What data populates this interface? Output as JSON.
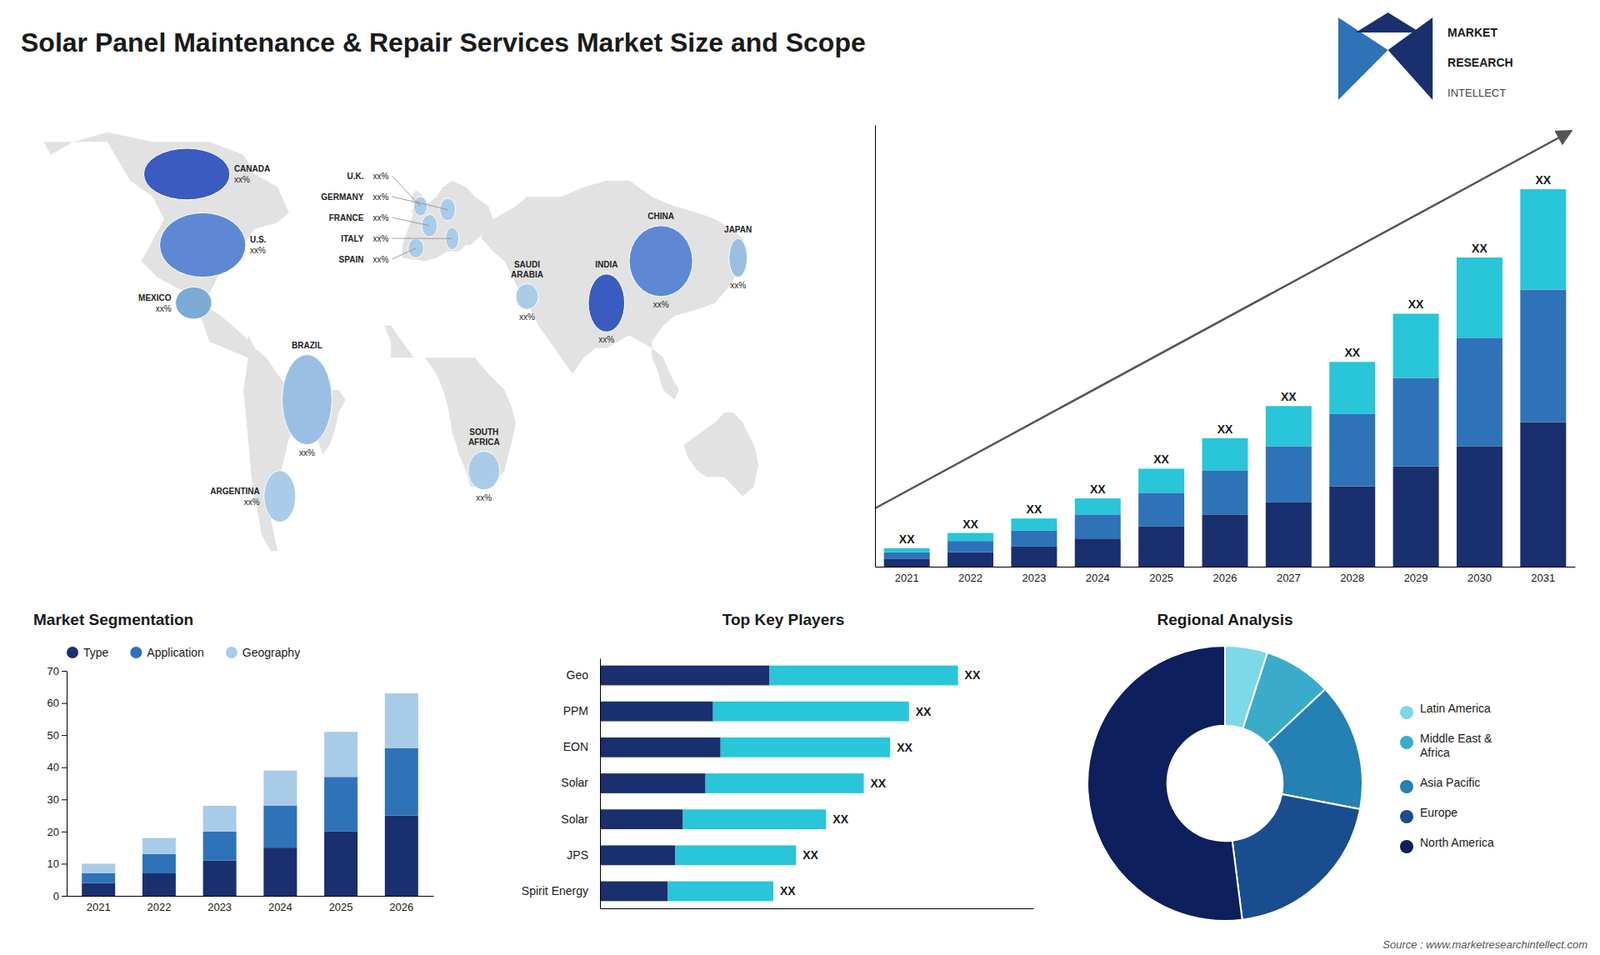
{
  "chart_data": [
    {
      "type": "bar",
      "title": "Solar Panel Maintenance & Repair Services Market Size and Scope",
      "stacked": true,
      "categories": [
        "2021",
        "2022",
        "2023",
        "2024",
        "2025",
        "2026",
        "2027",
        "2028",
        "2029",
        "2030",
        "2031"
      ],
      "series": [
        {
          "color": "#1a2f6e",
          "values": [
            1.0,
            1.8,
            2.5,
            3.5,
            5.0,
            6.5,
            8.0,
            10.0,
            12.5,
            15.0,
            18.0
          ]
        },
        {
          "color": "#2e72b8",
          "values": [
            0.8,
            1.4,
            2.0,
            3.0,
            4.2,
            5.5,
            7.0,
            9.0,
            11.0,
            13.5,
            16.5
          ]
        },
        {
          "color": "#29c5d8",
          "values": [
            0.5,
            1.0,
            1.5,
            2.0,
            3.0,
            4.0,
            5.0,
            6.5,
            8.0,
            10.0,
            12.5
          ]
        }
      ],
      "ylim": [
        0,
        55
      ],
      "yticks": [],
      "tick_labels": "x",
      "annotations": [
        "XX",
        "XX",
        "XX",
        "XX",
        "XX",
        "XX",
        "XX",
        "XX",
        "XX",
        "XX",
        "XX",
        "MARKET",
        "RESEARCH",
        "INTELLECT",
        "Source : www.marketresearchintellect.com"
      ]
    },
    {
      "type": "map",
      "categories": [
        "CANADA",
        "U.S.",
        "MEXICO",
        "BRAZIL",
        "ARGENTINA",
        "U.K.",
        "FRANCE",
        "SPAIN",
        "GERMANY",
        "ITALY",
        "SOUTH\nAFRICA",
        "SAUDI\nARABIA",
        "CHINA",
        "INDIA",
        "JAPAN"
      ],
      "colors": [
        "#3a5bbf",
        "#5e88d4",
        "#7baad4",
        "#9bbfe4",
        "#aacce8",
        "#aacce8",
        "#aacce8",
        "#aacce8",
        "#aacce8",
        "#aacce8",
        "#aacce8",
        "#aacce8",
        "#5e88d4",
        "#3a5bbf",
        "#9bbfe4"
      ],
      "annotations": [
        "xx%",
        "xx%",
        "xx%",
        "xx%",
        "xx%",
        "xx%",
        "xx%",
        "xx%",
        "xx%",
        "xx%",
        "xx%",
        "xx%",
        "xx%",
        "xx%",
        "xx%"
      ]
    },
    {
      "type": "bar",
      "title": "Market Segmentation",
      "stacked": true,
      "categories": [
        "2021",
        "2022",
        "2023",
        "2024",
        "2025",
        "2026"
      ],
      "series": [
        {
          "name": "Type",
          "color": "#1a2f6e",
          "values": [
            4,
            7,
            11,
            15,
            20,
            25
          ]
        },
        {
          "name": "Application",
          "color": "#2e72b8",
          "values": [
            3,
            6,
            9,
            13,
            17,
            21
          ]
        },
        {
          "name": "Geography",
          "color": "#a8cce8",
          "values": [
            3,
            5,
            8,
            11,
            14,
            17
          ]
        }
      ],
      "ylim": [
        0,
        70
      ],
      "yticks": [
        0,
        10,
        20,
        30,
        40,
        50,
        60,
        70
      ],
      "legend": "top"
    },
    {
      "type": "bar",
      "title": "Top Key Players",
      "orientation": "horizontal",
      "stacked": true,
      "categories": [
        "Geo",
        "PPM",
        "EON",
        "Solar",
        "Solar",
        "JPS",
        "Spirit Energy"
      ],
      "series": [
        {
          "color": "#1a2f6e",
          "values": [
            45,
            30,
            32,
            28,
            22,
            20,
            18
          ]
        },
        {
          "color": "#29c5d8",
          "values": [
            50,
            52,
            45,
            42,
            38,
            32,
            28
          ]
        }
      ],
      "xlim": [
        0,
        115
      ],
      "xticks": [],
      "tick_labels": "y",
      "annotations": [
        "XX",
        "XX",
        "XX",
        "XX",
        "XX",
        "XX",
        "XX"
      ]
    },
    {
      "type": "donut",
      "title": "Regional Analysis",
      "categories": [
        "Latin America",
        "Middle East &\nAfrica",
        "Asia Pacific",
        "Europe",
        "North America"
      ],
      "values": [
        5,
        8,
        15,
        20,
        52
      ],
      "colors": [
        "#7dd8e8",
        "#3aacca",
        "#2580b3",
        "#1a4d8f",
        "#0d1f5c"
      ],
      "legend": "right"
    }
  ]
}
